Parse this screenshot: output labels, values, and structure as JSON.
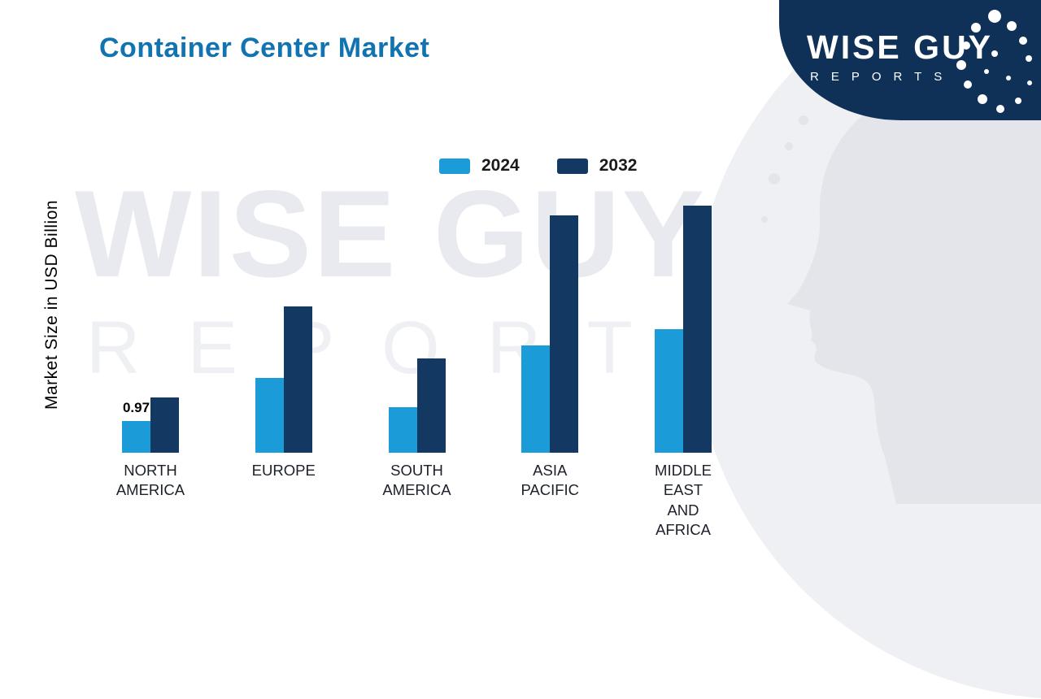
{
  "header": {
    "title": "Container Center Market"
  },
  "logo": {
    "line1": "WISE GUY",
    "line2": "REPORTS"
  },
  "watermark": {
    "line1": "WISE GUY",
    "line2": "REPORTS"
  },
  "colors": {
    "title": "#1173b0",
    "corner_background": "#0f3057",
    "series_2024": "#1b9bd7",
    "series_2032": "#133862",
    "background_circle": "#eff0f4"
  },
  "chart_data": {
    "type": "bar",
    "title": "Container Center Market",
    "ylabel": "Market Size in USD Billion",
    "xlabel": "",
    "categories": [
      "NORTH\nAMERICA",
      "EUROPE",
      "SOUTH\nAMERICA",
      "ASIA\nPACIFIC",
      "MIDDLE\nEAST\nAND\nAFRICA"
    ],
    "series": [
      {
        "name": "2024",
        "color": "#1b9bd7",
        "values": [
          0.97,
          2.3,
          1.4,
          3.3,
          3.8
        ]
      },
      {
        "name": "2032",
        "color": "#133862",
        "values": [
          1.7,
          4.5,
          2.9,
          7.3,
          7.6
        ]
      }
    ],
    "data_labels": [
      [
        "0.97",
        null,
        null,
        null,
        null
      ],
      [
        null,
        null,
        null,
        null,
        null
      ]
    ],
    "ylim": [
      0,
      8
    ],
    "grid": false,
    "legend_position": "top"
  }
}
